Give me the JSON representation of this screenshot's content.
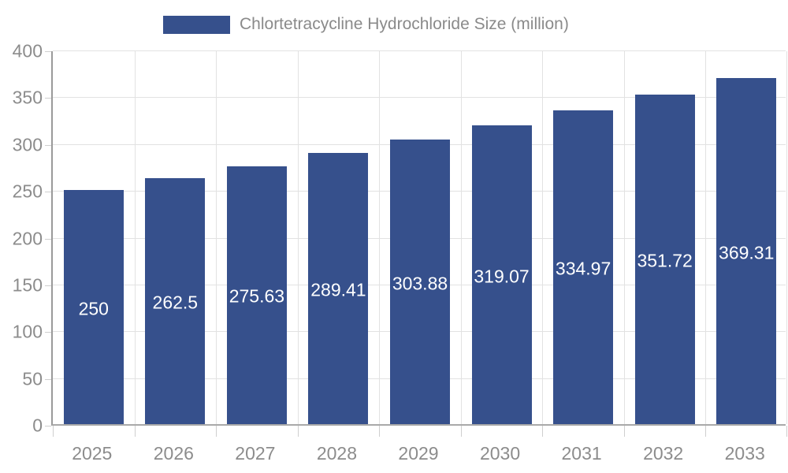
{
  "legend": {
    "label": "Chlortetracycline Hydrochloride Size (million)"
  },
  "chart_data": {
    "type": "bar",
    "title": "Chlortetracycline Hydrochloride Size (million)",
    "categories": [
      "2025",
      "2026",
      "2027",
      "2028",
      "2029",
      "2030",
      "2031",
      "2032",
      "2033"
    ],
    "values": [
      250,
      262.5,
      275.63,
      289.41,
      303.88,
      319.07,
      334.97,
      351.72,
      369.31
    ],
    "value_labels": [
      "250",
      "262.5",
      "275.63",
      "289.41",
      "303.88",
      "319.07",
      "334.97",
      "351.72",
      "369.31"
    ],
    "xlabel": "",
    "ylabel": "",
    "ylim": [
      0,
      400
    ],
    "ytick_interval": 50,
    "yticks": [
      "0",
      "50",
      "100",
      "150",
      "200",
      "250",
      "300",
      "350",
      "400"
    ],
    "grid": true,
    "legend_position": "top",
    "colors": {
      "bar": "#36508c",
      "value_label": "#ffffff",
      "axis_text": "#8c8c8c",
      "legend_text": "#8a8a8a",
      "gridline": "#e2e2e2",
      "axis_line": "#a0a0a0"
    }
  }
}
